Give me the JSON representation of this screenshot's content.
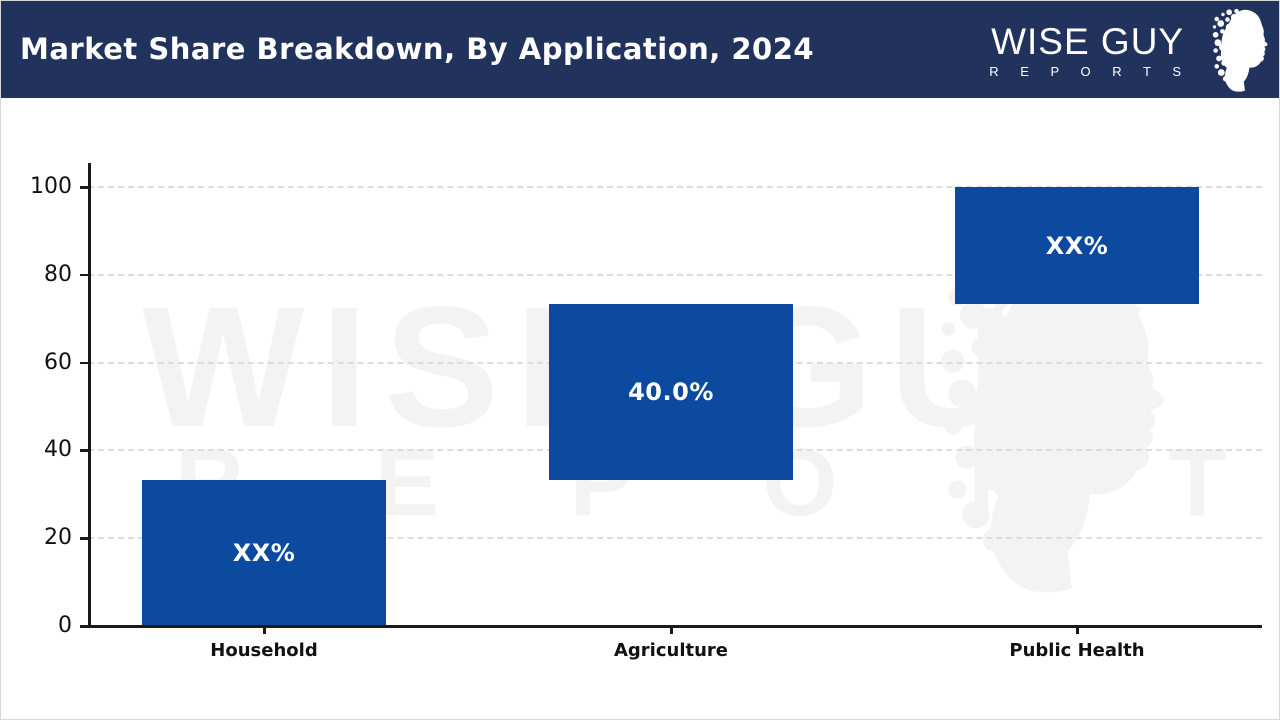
{
  "header": {
    "title": "Market Share Breakdown, By Application, 2024",
    "logo": {
      "wordmark": "WISE GUY",
      "sub": "R E P O R T S"
    }
  },
  "watermark": {
    "wordmark": "WISE GUY",
    "sub": "R E P O R T S"
  },
  "chart_data": {
    "type": "bar",
    "variant": "floating-segment-waterfall",
    "title": "Market Share Breakdown, By Application, 2024",
    "categories": [
      "Household",
      "Agriculture",
      "Public Health"
    ],
    "segments": [
      {
        "category": "Household",
        "start": 0,
        "end": 33.3,
        "label": "XX%"
      },
      {
        "category": "Agriculture",
        "start": 33.3,
        "end": 73.3,
        "label": "40.0%"
      },
      {
        "category": "Public Health",
        "start": 73.3,
        "end": 100.0,
        "label": "XX%"
      }
    ],
    "xlabel": "",
    "ylabel": "",
    "yticks": [
      0,
      20,
      40,
      60,
      80,
      100
    ],
    "ylim": [
      0,
      105.5
    ],
    "grid": "horizontal-dashed",
    "legend": false,
    "colors": {
      "bar": "#0b4a9e",
      "bar_label": "#ffffff",
      "header_bg": "#21335c",
      "grid": "#dcdcdc",
      "axis": "#1a1a1a",
      "watermark": "#f3f3f3",
      "tick_label": "#111111"
    }
  }
}
